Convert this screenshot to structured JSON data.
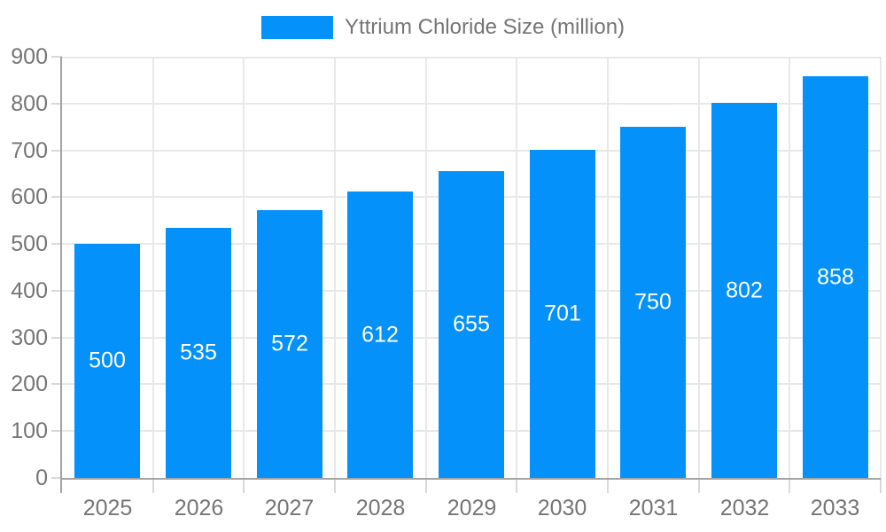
{
  "chart_data": {
    "type": "bar",
    "title": "Yttrium Chloride Size (million)",
    "legend": "Yttrium Chloride Size (million)",
    "legend_position": "top",
    "categories": [
      "2025",
      "2026",
      "2027",
      "2028",
      "2029",
      "2030",
      "2031",
      "2032",
      "2033"
    ],
    "values": [
      500,
      535,
      572,
      612,
      655,
      701,
      750,
      802,
      858
    ],
    "bar_labels": [
      500,
      535,
      572,
      612,
      655,
      701,
      750,
      802,
      858
    ],
    "xlabel": "",
    "ylabel": "",
    "ylim": [
      0,
      900
    ],
    "yticks": [
      0,
      100,
      200,
      300,
      400,
      500,
      600,
      700,
      800,
      900
    ],
    "grid": true,
    "colors": {
      "bar": "#0591fa",
      "bar_label_text": "#ffffff",
      "axis_text": "#757575",
      "legend_text": "#757575",
      "gridline": "#e8e8e8",
      "axis_line": "#a3a3a3",
      "tick": "#d9d9d9",
      "background": "#ffffff"
    }
  }
}
